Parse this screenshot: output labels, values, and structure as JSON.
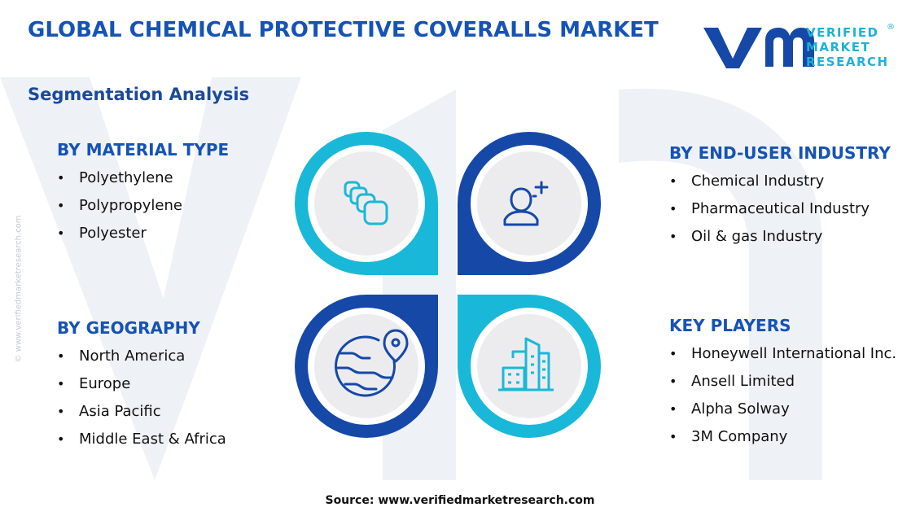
{
  "header": {
    "title": "GLOBAL CHEMICAL PROTECTIVE COVERALLS MARKET",
    "subtitle": "Segmentation Analysis"
  },
  "logo": {
    "line1": "VERIFIED",
    "line2": "MARKET",
    "line3": "RESEARCH",
    "registered": "®"
  },
  "side_watermark": "© www.verifiedmarketresearch.com",
  "segments": {
    "material": {
      "heading": "BY MATERIAL TYPE",
      "items": [
        "Polyethylene",
        "Polypropylene",
        "Polyester"
      ]
    },
    "geography": {
      "heading": "BY GEOGRAPHY",
      "items": [
        "North America",
        "Europe",
        "Asia Pacific",
        "Middle East & Africa"
      ]
    },
    "end_user": {
      "heading": "BY END-USER INDUSTRY",
      "items": [
        "Chemical Industry",
        "Pharmaceutical Industry",
        "Oil & gas Industry"
      ]
    },
    "key_players": {
      "heading": "KEY PLAYERS",
      "items": [
        "Honeywell International Inc.",
        "Ansell Limited",
        "Alpha Solway",
        "3M Company"
      ]
    }
  },
  "diagram_icons": [
    "material-layers-icon",
    "user-person-icon",
    "globe-location-icon",
    "buildings-icon"
  ],
  "colors": {
    "title_blue": "#1553b5",
    "dark_blue": "#1648a8",
    "cyan": "#1ab8d8",
    "circle_gray": "#ececef",
    "text": "#111111"
  },
  "footer": {
    "source": "Source: www.verifiedmarketresearch.com"
  }
}
